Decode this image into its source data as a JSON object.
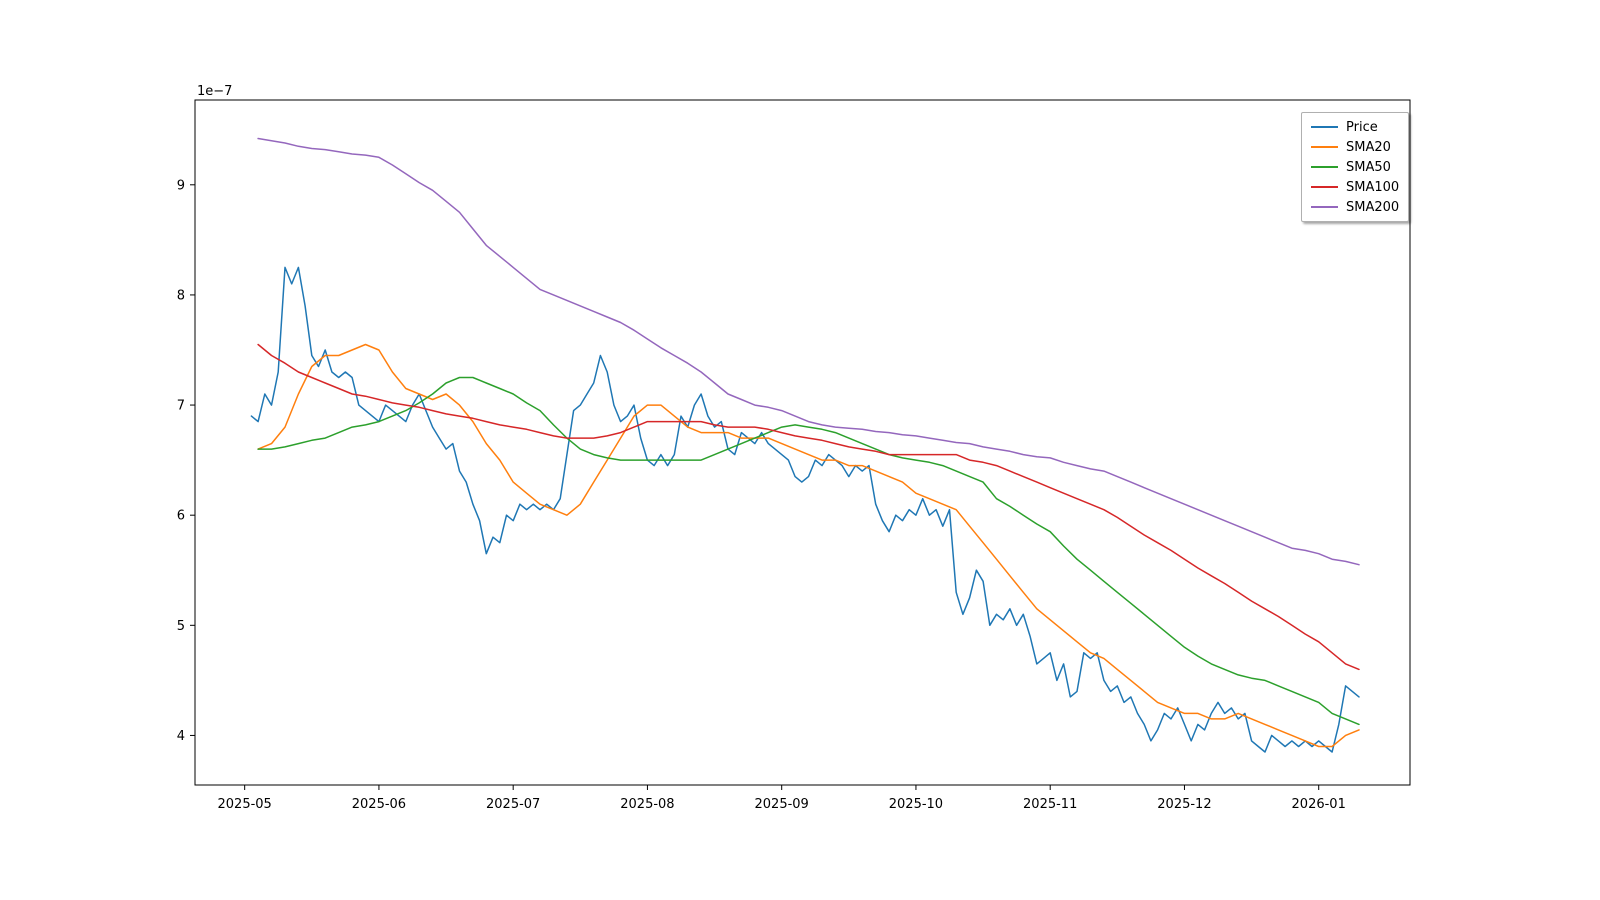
{
  "chart_data": {
    "type": "line",
    "title": "",
    "xlabel": "",
    "ylabel": "",
    "offset_text": "1e−7",
    "y_scale": "1e-7",
    "x_unit": "months since 2025-05-01",
    "xlim": [
      -0.37,
      8.68
    ],
    "ylim": [
      3.55,
      9.77
    ],
    "grid": false,
    "legend_position": "upper right",
    "x_ticks": [
      0,
      1,
      2,
      3,
      4,
      5,
      6,
      7,
      8
    ],
    "x_tick_labels": [
      "2025-05",
      "2025-06",
      "2025-07",
      "2025-08",
      "2025-09",
      "2025-10",
      "2025-11",
      "2025-12",
      "2026-01"
    ],
    "y_ticks": [
      4,
      5,
      6,
      7,
      8,
      9
    ],
    "series": [
      {
        "name": "Price",
        "color": "#1f77b4",
        "x_start": 0.05,
        "x_step": 0.05,
        "y": [
          6.9,
          6.85,
          7.1,
          7.0,
          7.3,
          8.25,
          8.1,
          8.25,
          7.9,
          7.45,
          7.35,
          7.5,
          7.3,
          7.25,
          7.3,
          7.25,
          7.0,
          6.95,
          6.9,
          6.85,
          7.0,
          6.95,
          6.9,
          6.85,
          7.0,
          7.1,
          6.95,
          6.8,
          6.7,
          6.6,
          6.65,
          6.4,
          6.3,
          6.1,
          5.95,
          5.65,
          5.8,
          5.75,
          6.0,
          5.95,
          6.1,
          6.05,
          6.1,
          6.05,
          6.1,
          6.05,
          6.15,
          6.55,
          6.95,
          7.0,
          7.1,
          7.2,
          7.45,
          7.3,
          7.0,
          6.85,
          6.9,
          7.0,
          6.7,
          6.5,
          6.45,
          6.55,
          6.45,
          6.55,
          6.9,
          6.8,
          7.0,
          7.1,
          6.9,
          6.8,
          6.85,
          6.6,
          6.55,
          6.75,
          6.7,
          6.65,
          6.75,
          6.65,
          6.6,
          6.55,
          6.5,
          6.35,
          6.3,
          6.35,
          6.5,
          6.45,
          6.55,
          6.5,
          6.45,
          6.35,
          6.45,
          6.4,
          6.45,
          6.1,
          5.95,
          5.85,
          6.0,
          5.95,
          6.05,
          6.0,
          6.15,
          6.0,
          6.05,
          5.9,
          6.05,
          5.3,
          5.1,
          5.25,
          5.5,
          5.4,
          5.0,
          5.1,
          5.05,
          5.15,
          5.0,
          5.1,
          4.9,
          4.65,
          4.7,
          4.75,
          4.5,
          4.65,
          4.35,
          4.4,
          4.75,
          4.7,
          4.75,
          4.5,
          4.4,
          4.45,
          4.3,
          4.35,
          4.2,
          4.1,
          3.95,
          4.05,
          4.2,
          4.15,
          4.25,
          4.1,
          3.95,
          4.1,
          4.05,
          4.2,
          4.3,
          4.2,
          4.25,
          4.15,
          4.2,
          3.95,
          3.9,
          3.85,
          4.0,
          3.95,
          3.9,
          3.95,
          3.9,
          3.95,
          3.9,
          3.95,
          3.9,
          3.85,
          4.1,
          4.45,
          4.4,
          4.35
        ]
      },
      {
        "name": "SMA20",
        "color": "#ff7f0e",
        "x_start": 0.1,
        "x_step": 0.1,
        "y": [
          6.6,
          6.65,
          6.8,
          7.1,
          7.35,
          7.45,
          7.45,
          7.5,
          7.55,
          7.5,
          7.3,
          7.15,
          7.1,
          7.05,
          7.1,
          7.0,
          6.85,
          6.65,
          6.5,
          6.3,
          6.2,
          6.1,
          6.05,
          6.0,
          6.1,
          6.3,
          6.5,
          6.7,
          6.9,
          7.0,
          7.0,
          6.9,
          6.8,
          6.75,
          6.75,
          6.75,
          6.7,
          6.7,
          6.7,
          6.65,
          6.6,
          6.55,
          6.5,
          6.5,
          6.45,
          6.45,
          6.4,
          6.35,
          6.3,
          6.2,
          6.15,
          6.1,
          6.05,
          5.9,
          5.75,
          5.6,
          5.45,
          5.3,
          5.15,
          5.05,
          4.95,
          4.85,
          4.75,
          4.7,
          4.6,
          4.5,
          4.4,
          4.3,
          4.25,
          4.2,
          4.2,
          4.15,
          4.15,
          4.2,
          4.15,
          4.1,
          4.05,
          4.0,
          3.95,
          3.9,
          3.9,
          4.0,
          4.05
        ]
      },
      {
        "name": "SMA50",
        "color": "#2ca02c",
        "x_start": 0.1,
        "x_step": 0.1,
        "y": [
          6.6,
          6.6,
          6.62,
          6.65,
          6.68,
          6.7,
          6.75,
          6.8,
          6.82,
          6.85,
          6.9,
          6.95,
          7.02,
          7.1,
          7.2,
          7.25,
          7.25,
          7.2,
          7.15,
          7.1,
          7.02,
          6.95,
          6.82,
          6.7,
          6.6,
          6.55,
          6.52,
          6.5,
          6.5,
          6.5,
          6.5,
          6.5,
          6.5,
          6.5,
          6.55,
          6.6,
          6.65,
          6.7,
          6.75,
          6.8,
          6.82,
          6.8,
          6.78,
          6.75,
          6.7,
          6.65,
          6.6,
          6.55,
          6.52,
          6.5,
          6.48,
          6.45,
          6.4,
          6.35,
          6.3,
          6.15,
          6.08,
          6.0,
          5.92,
          5.85,
          5.72,
          5.6,
          5.5,
          5.4,
          5.3,
          5.2,
          5.1,
          5.0,
          4.9,
          4.8,
          4.72,
          4.65,
          4.6,
          4.55,
          4.52,
          4.5,
          4.45,
          4.4,
          4.35,
          4.3,
          4.2,
          4.15,
          4.1
        ]
      },
      {
        "name": "SMA100",
        "color": "#d62728",
        "x_start": 0.1,
        "x_step": 0.1,
        "y": [
          7.55,
          7.45,
          7.38,
          7.3,
          7.25,
          7.2,
          7.15,
          7.1,
          7.08,
          7.05,
          7.02,
          7.0,
          6.98,
          6.95,
          6.92,
          6.9,
          6.88,
          6.85,
          6.82,
          6.8,
          6.78,
          6.75,
          6.72,
          6.7,
          6.7,
          6.7,
          6.72,
          6.75,
          6.8,
          6.85,
          6.85,
          6.85,
          6.85,
          6.85,
          6.82,
          6.8,
          6.8,
          6.8,
          6.78,
          6.75,
          6.72,
          6.7,
          6.68,
          6.65,
          6.62,
          6.6,
          6.58,
          6.55,
          6.55,
          6.55,
          6.55,
          6.55,
          6.55,
          6.5,
          6.48,
          6.45,
          6.4,
          6.35,
          6.3,
          6.25,
          6.2,
          6.15,
          6.1,
          6.05,
          5.98,
          5.9,
          5.82,
          5.75,
          5.68,
          5.6,
          5.52,
          5.45,
          5.38,
          5.3,
          5.22,
          5.15,
          5.08,
          5.0,
          4.92,
          4.85,
          4.75,
          4.65,
          4.6
        ]
      },
      {
        "name": "SMA200",
        "color": "#9467bd",
        "x_start": 0.1,
        "x_step": 0.1,
        "y": [
          9.42,
          9.4,
          9.38,
          9.35,
          9.33,
          9.32,
          9.3,
          9.28,
          9.27,
          9.25,
          9.18,
          9.1,
          9.02,
          8.95,
          8.85,
          8.75,
          8.6,
          8.45,
          8.35,
          8.25,
          8.15,
          8.05,
          8.0,
          7.95,
          7.9,
          7.85,
          7.8,
          7.75,
          7.68,
          7.6,
          7.52,
          7.45,
          7.38,
          7.3,
          7.2,
          7.1,
          7.05,
          7.0,
          6.98,
          6.95,
          6.9,
          6.85,
          6.82,
          6.8,
          6.79,
          6.78,
          6.76,
          6.75,
          6.73,
          6.72,
          6.7,
          6.68,
          6.66,
          6.65,
          6.62,
          6.6,
          6.58,
          6.55,
          6.53,
          6.52,
          6.48,
          6.45,
          6.42,
          6.4,
          6.35,
          6.3,
          6.25,
          6.2,
          6.15,
          6.1,
          6.05,
          6.0,
          5.95,
          5.9,
          5.85,
          5.8,
          5.75,
          5.7,
          5.68,
          5.65,
          5.6,
          5.58,
          5.55
        ]
      }
    ],
    "legend_entries": [
      "Price",
      "SMA20",
      "SMA50",
      "SMA100",
      "SMA200"
    ]
  }
}
